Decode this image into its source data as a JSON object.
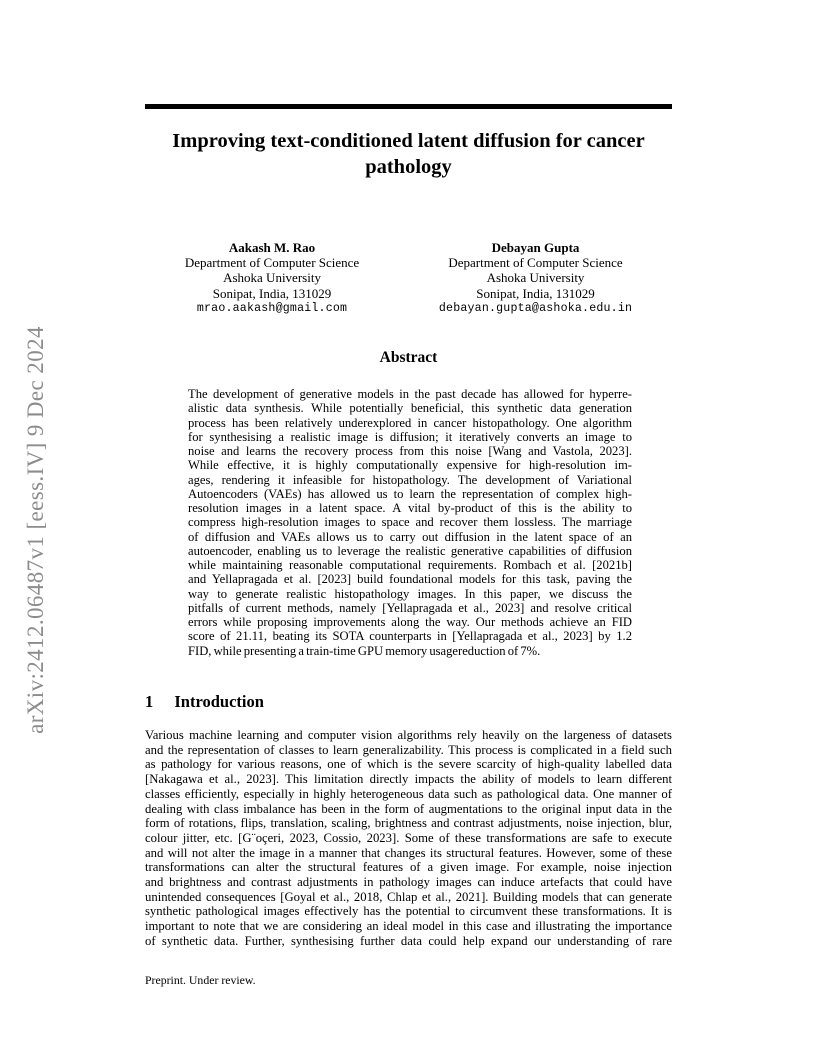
{
  "arxiv_watermark": "arXiv:2412.06487v1  [eess.IV]  9 Dec 2024",
  "colors": {
    "text": "#000000",
    "watermark": "#8c8c8c",
    "rule": "#000000",
    "background": "#ffffff"
  },
  "paper": {
    "title_lines": [
      "Improving text-conditioned latent diffusion for cancer",
      "pathology"
    ],
    "authors": [
      {
        "name": "Aakash M. Rao",
        "affiliation": [
          "Department of Computer Science",
          "Ashoka University",
          "Sonipat, India, 131029"
        ],
        "email": "mrao.aakash@gmail.com"
      },
      {
        "name": "Debayan Gupta",
        "affiliation": [
          "Department of Computer Science",
          "Ashoka University",
          "Sonipat, India, 131029"
        ],
        "email": "debayan.gupta@ashoka.edu.in"
      }
    ],
    "abstract": {
      "heading": "Abstract",
      "lines": [
        "The development of generative models in the past decade has allowed for hyperre-",
        "alistic data synthesis. While potentially beneficial, this synthetic data generation",
        "process has been relatively underexplored in cancer histopathology. One algorithm",
        "for synthesising a realistic image is diffusion; it iteratively converts an image to",
        "noise and learns the recovery process from this noise [Wang and Vastola, 2023].",
        "While effective, it is highly computationally expensive for high-resolution im-",
        "ages, rendering it infeasible for histopathology. The development of Variational",
        "Autoencoders (VAEs) has allowed us to learn the representation of complex high-",
        "resolution images in a latent space. A vital by-product of this is the ability to",
        "compress high-resolution images to space and recover them lossless. The marriage",
        "of diffusion and VAEs allows us to carry out diffusion in the latent space of an",
        "autoencoder, enabling us to leverage the realistic generative capabilities of diffusion",
        "while maintaining reasonable computational requirements. Rombach et al. [2021b]",
        "and Yellapragada et al. [2023] build foundational models for this task, paving the",
        "way to generate realistic histopathology images. In this paper, we discuss the",
        "pitfalls of current methods, namely [Yellapragada et al., 2023] and resolve critical",
        "errors while proposing improvements along the way. Our methods achieve an FID",
        "score of 21.11, beating its SOTA counterparts in [Yellapragada et al., 2023] by 1.2",
        "FID, while presenting a train-time GPU memory usagereduction of 7%."
      ]
    },
    "section1": {
      "number": "1",
      "title": "Introduction"
    },
    "introduction_lines": [
      "Various machine learning and computer vision algorithms rely heavily on the largeness of datasets",
      "and the representation of classes to learn generalizability. This process is complicated in a field such",
      "as pathology for various reasons, one of which is the severe scarcity of high-quality labelled data",
      "[Nakagawa et al., 2023]. This limitation directly impacts the ability of models to learn different",
      "classes efficiently, especially in highly heterogeneous data such as pathological data. One manner of",
      "dealing with class imbalance has been in the form of augmentations to the original input data in the",
      "form of rotations, flips, translation, scaling, brightness and contrast adjustments, noise injection, blur,",
      "colour jitter, etc. [G¨oçeri, 2023, Cossio, 2023]. Some of these transformations are safe to execute",
      "and will not alter the image in a manner that changes its structural features. However, some of these",
      "transformations can alter the structural features of a given image. For example, noise injection",
      "and brightness and contrast adjustments in pathology images can induce artefacts that could have",
      "unintended consequences [Goyal et al., 2018, Chlap et al., 2021]. Building models that can generate",
      "synthetic pathological images effectively has the potential to circumvent these transformations. It is",
      "important to note that we are considering an ideal model in this case and illustrating the importance",
      "of synthetic data. Further, synthesising further data could help expand our understanding of rare"
    ],
    "footer": "Preprint. Under review."
  }
}
